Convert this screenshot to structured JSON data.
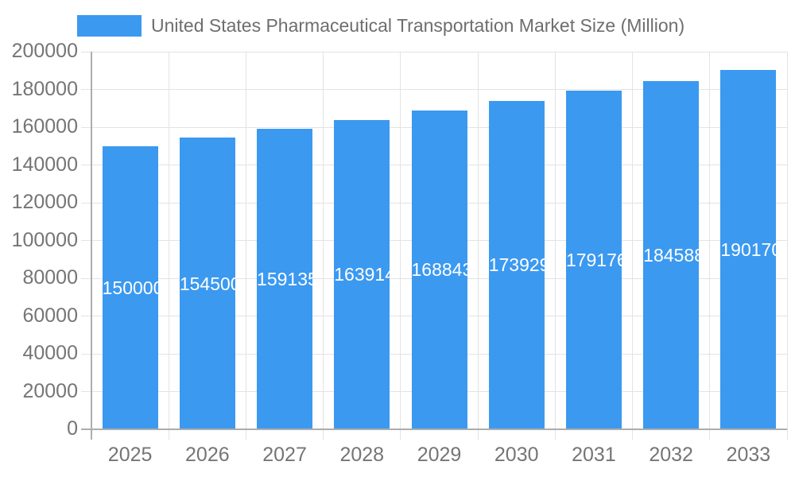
{
  "chart_data": {
    "type": "bar",
    "title": "United States Pharmaceutical Transportation Market Size (Million)",
    "legend": {
      "position": "top",
      "items": [
        {
          "label": "United States Pharmaceutical Transportation Market Size (Million)"
        }
      ]
    },
    "categories": [
      "2025",
      "2026",
      "2027",
      "2028",
      "2029",
      "2030",
      "2031",
      "2032",
      "2033"
    ],
    "series": [
      {
        "name": "United States Pharmaceutical Transportation Market Size (Million)",
        "values": [
          150000,
          154500,
          159135,
          163914,
          168843,
          173929,
          179176,
          184588,
          190170
        ]
      }
    ],
    "data_labels_shown": true,
    "xlabel": "",
    "ylabel": "",
    "ylim": [
      0,
      200000
    ],
    "ytick_step": 20000,
    "yticks": [
      0,
      20000,
      40000,
      60000,
      80000,
      100000,
      120000,
      140000,
      160000,
      180000,
      200000
    ],
    "grid": true,
    "colors": {
      "bar": "#3b99f0",
      "data_label_text": "#ffffff",
      "axis_text": "#757575",
      "legend_text": "#6e6e6e",
      "gridline": "#e3e3e3",
      "axis_line": "#adadad",
      "background": "#ffffff"
    }
  }
}
